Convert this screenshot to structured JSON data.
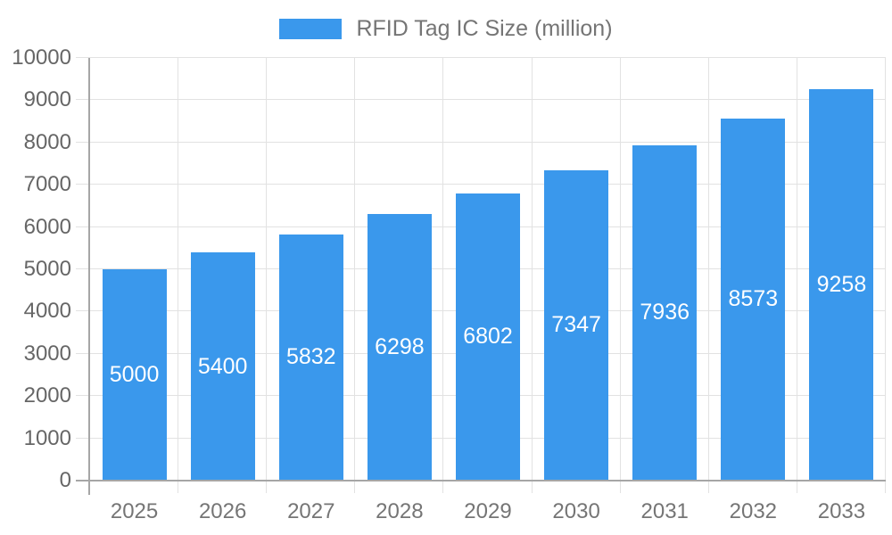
{
  "chart_data": {
    "type": "bar",
    "series_name": "RFID Tag IC Size (million)",
    "categories": [
      "2025",
      "2026",
      "2027",
      "2028",
      "2029",
      "2030",
      "2031",
      "2032",
      "2033"
    ],
    "values": [
      5000,
      5400,
      5832,
      6298,
      6802,
      7347,
      7936,
      8573,
      9258
    ],
    "title": "",
    "xlabel": "",
    "ylabel": "",
    "ylim": [
      0,
      10000
    ],
    "ytick_step": 1000,
    "grid": true,
    "legend_position": "top-center",
    "value_label_position": "inside-center",
    "colors": {
      "bar": "#3A98EC",
      "bar_value_text": "#FFFFFF",
      "gridline": "#E2E2E2",
      "axis_line": "#A6A6A6",
      "y_axis_text": "#666666",
      "x_axis_text": "#757575",
      "legend_text": "#757575",
      "background": "#FFFFFF"
    }
  }
}
